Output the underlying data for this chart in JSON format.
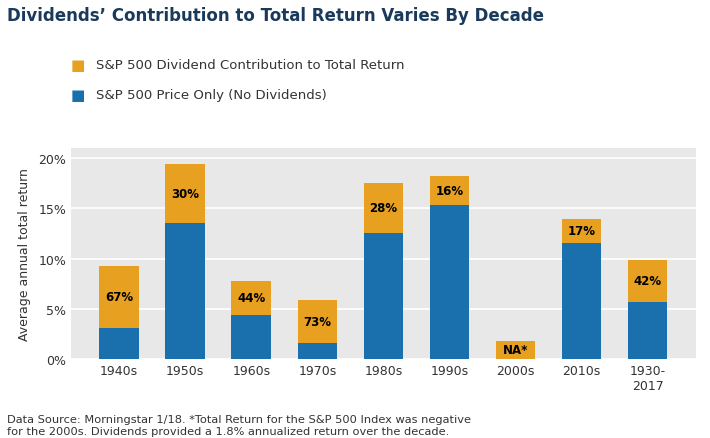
{
  "categories": [
    "1940s",
    "1950s",
    "1960s",
    "1970s",
    "1980s",
    "1990s",
    "2000s",
    "2010s",
    "1930-\n2017"
  ],
  "price_only": [
    3.1,
    13.6,
    4.4,
    1.6,
    12.6,
    15.3,
    0.0,
    11.6,
    5.7
  ],
  "dividend": [
    6.2,
    5.8,
    3.4,
    4.3,
    4.9,
    2.9,
    1.8,
    2.4,
    4.2
  ],
  "pct_labels": [
    "67%",
    "30%",
    "44%",
    "73%",
    "28%",
    "16%",
    "NA*",
    "17%",
    "42%"
  ],
  "color_price": "#1a6fad",
  "color_dividend": "#e8a020",
  "color_background": "#e8e8e8",
  "title": "Dividends’ Contribution to Total Return Varies By Decade",
  "ylabel": "Average annual total return",
  "legend_dividend": "S&P 500 Dividend Contribution to Total Return",
  "legend_price": "S&P 500 Price Only (No Dividends)",
  "footnote": "Data Source: Morningstar 1/18. *Total Return for the S&P 500 Index was negative\nfor the 2000s. Dividends provided a 1.8% annualized return over the decade.",
  "title_color": "#1a3a5c",
  "ylim": [
    0,
    21
  ],
  "yticks": [
    0,
    5,
    10,
    15,
    20
  ],
  "ytick_labels": [
    "0%",
    "5%",
    "10%",
    "15%",
    "20%"
  ]
}
